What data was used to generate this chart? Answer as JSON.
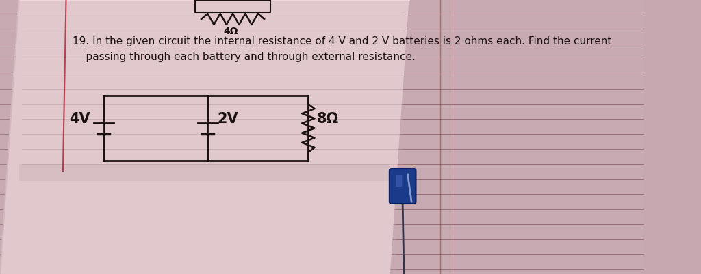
{
  "bg_color": "#c8a8b0",
  "notebook_color": "#d4b0b8",
  "paper_color": "#e8d0d4",
  "white_paper_color": "#ddc8cc",
  "text_color": "#1a1010",
  "line_color": "#1a1010",
  "ruled_line_color": "#8a6068",
  "red_margin_color": "#aa2030",
  "title_line1": "19. In the given circuit the internal resistance of 4 V and 2 V batteries is 2 ohms each. Find the current",
  "title_line2": "    passing through each battery and through external resistance.",
  "circuit_4v_label": "4V",
  "circuit_2v_label": "2V",
  "circuit_r_label": "8Ω",
  "top_res_label": "4Ω",
  "font_size_text": 11.0,
  "font_size_circuit": 13,
  "pen_color": "#1a3a8a",
  "pen_dark": "#0a2060"
}
